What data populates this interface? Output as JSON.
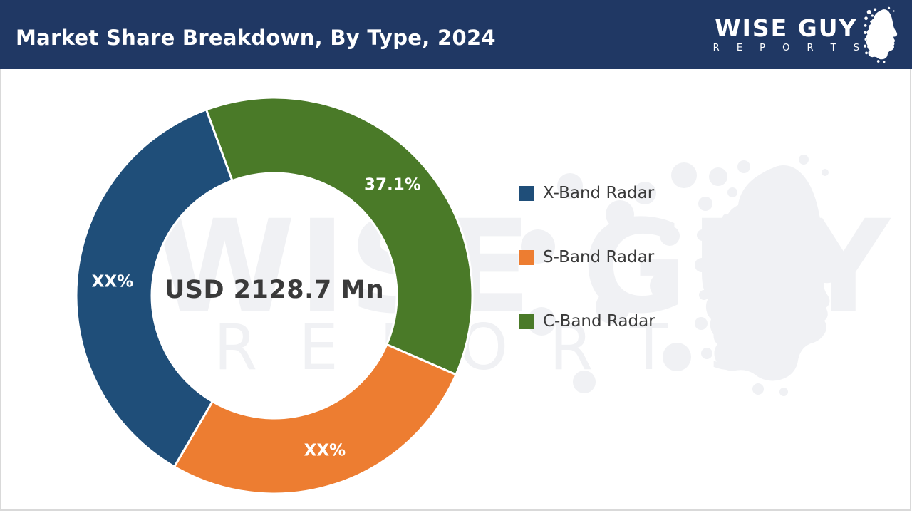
{
  "header": {
    "title": "Market Share Breakdown, By Type, 2024"
  },
  "brand": {
    "line1": "WISE GUY",
    "line2": "R E P O R T S"
  },
  "watermark": {
    "line1": "WISE GUY",
    "line2": "REPORTS"
  },
  "chart_data": {
    "type": "pie",
    "subtype": "donut",
    "title": "Market Share Breakdown, By Type, 2024",
    "center_label": "USD 2128.7 Mn",
    "start_angle_deg": -20.1,
    "clockwise": true,
    "legend_position": "right",
    "segments": [
      {
        "name": "C-Band Radar",
        "display_pct": "37.1%",
        "value_pct": 37.1,
        "color": "#4A7A28"
      },
      {
        "name": "S-Band Radar",
        "display_pct": "XX%",
        "value_pct": 26.9,
        "color": "#ED7D31"
      },
      {
        "name": "X-Band Radar",
        "display_pct": "XX%",
        "value_pct": 36.0,
        "color": "#1F4E79"
      }
    ]
  },
  "legend": {
    "items": [
      {
        "label": "X-Band Radar",
        "color": "#1F4E79"
      },
      {
        "label": "S-Band Radar",
        "color": "#ED7D31"
      },
      {
        "label": "C-Band Radar",
        "color": "#4A7A28"
      }
    ]
  },
  "colors": {
    "header_bg": "#203864",
    "frame": "#d9d9d9",
    "text_dark": "#3a3a3a",
    "watermark": "#f0f1f4",
    "segment_label_text": "#ffffff"
  }
}
